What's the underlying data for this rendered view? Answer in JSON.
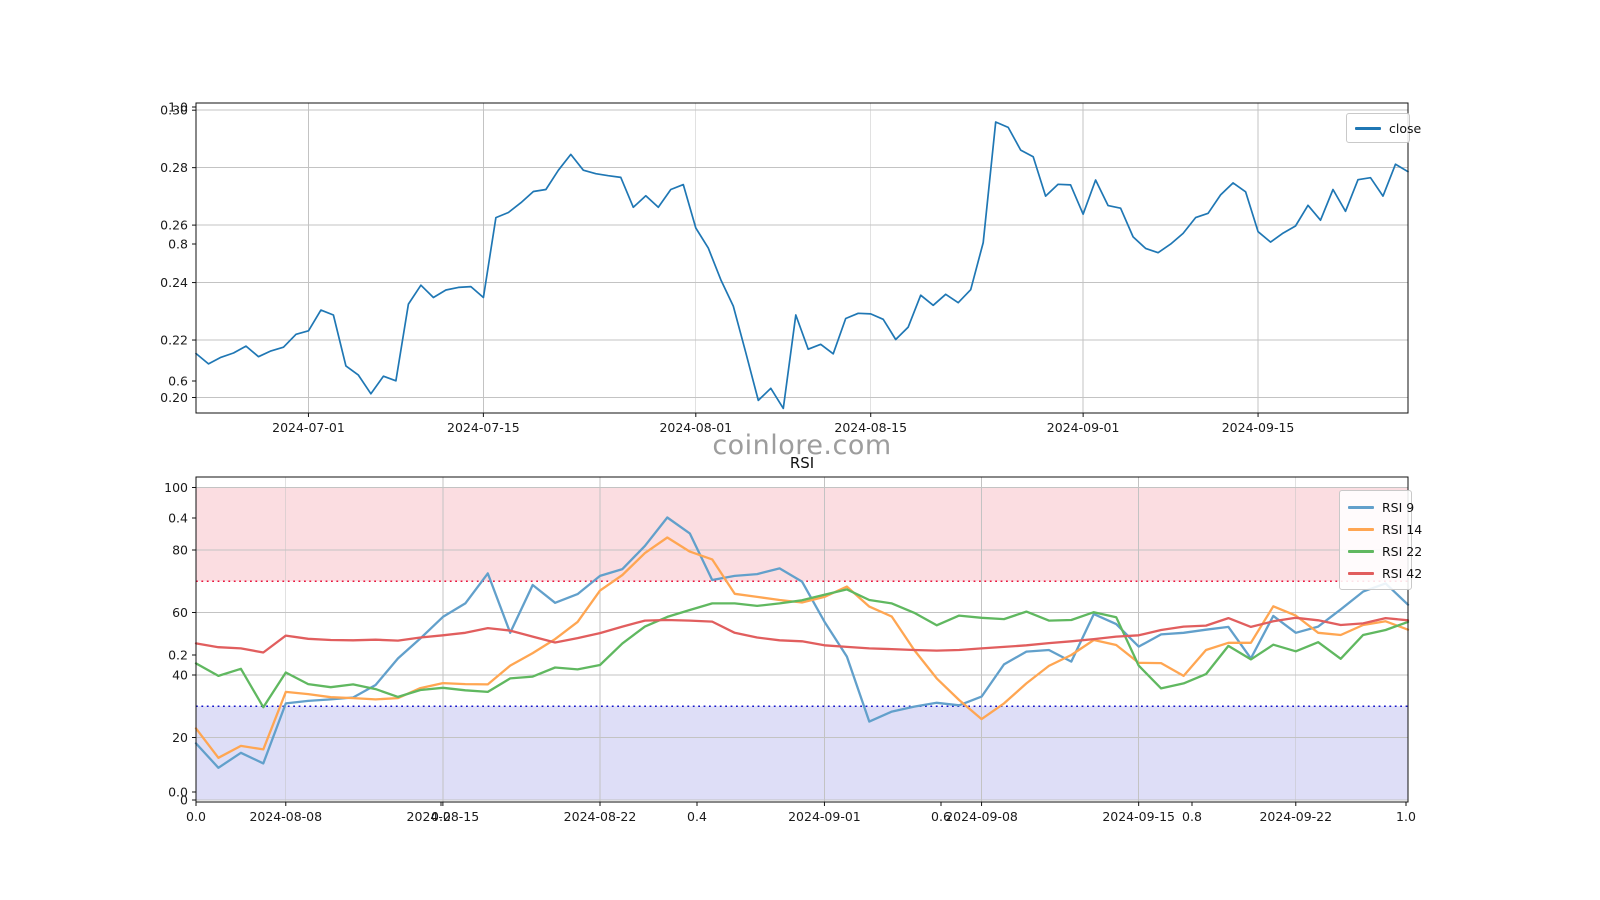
{
  "watermark": "coinlore.com",
  "overlay_axis": {
    "xtick_labels": [
      "0.0",
      "0.2",
      "0.4",
      "0.6",
      "0.8",
      "1.0"
    ],
    "ytick_labels": [
      "1.0",
      "0.8",
      "0.6",
      "0.4",
      "0.2",
      "0.0"
    ]
  },
  "chart_data": [
    {
      "type": "line",
      "title": "",
      "legend_position": "upper right",
      "grid": true,
      "ylim": [
        0.1946,
        0.3025
      ],
      "yticks": [
        {
          "v": 0.3,
          "label": "0.30"
        },
        {
          "v": 0.28,
          "label": "0.28"
        },
        {
          "v": 0.26,
          "label": "0.26"
        },
        {
          "v": 0.24,
          "label": "0.24"
        },
        {
          "v": 0.22,
          "label": "0.22"
        },
        {
          "v": 0.2,
          "label": "0.20"
        }
      ],
      "xticks": [
        {
          "i": 9,
          "label": "2024-07-01"
        },
        {
          "i": 23,
          "label": "2024-07-15"
        },
        {
          "i": 40,
          "label": "2024-08-01"
        },
        {
          "i": 54,
          "label": "2024-08-15"
        },
        {
          "i": 71,
          "label": "2024-09-01"
        },
        {
          "i": 85,
          "label": "2024-09-15"
        }
      ],
      "x": [
        "2024-06-22",
        "2024-06-23",
        "2024-06-24",
        "2024-06-25",
        "2024-06-26",
        "2024-06-27",
        "2024-06-28",
        "2024-06-29",
        "2024-06-30",
        "2024-07-01",
        "2024-07-02",
        "2024-07-03",
        "2024-07-04",
        "2024-07-05",
        "2024-07-06",
        "2024-07-07",
        "2024-07-08",
        "2024-07-09",
        "2024-07-10",
        "2024-07-11",
        "2024-07-12",
        "2024-07-13",
        "2024-07-14",
        "2024-07-15",
        "2024-07-16",
        "2024-07-17",
        "2024-07-18",
        "2024-07-19",
        "2024-07-20",
        "2024-07-21",
        "2024-07-22",
        "2024-07-23",
        "2024-07-24",
        "2024-07-25",
        "2024-07-26",
        "2024-07-27",
        "2024-07-28",
        "2024-07-29",
        "2024-07-30",
        "2024-07-31",
        "2024-08-01",
        "2024-08-02",
        "2024-08-03",
        "2024-08-04",
        "2024-08-05",
        "2024-08-06",
        "2024-08-07",
        "2024-08-08",
        "2024-08-09",
        "2024-08-10",
        "2024-08-11",
        "2024-08-12",
        "2024-08-13",
        "2024-08-14",
        "2024-08-15",
        "2024-08-16",
        "2024-08-17",
        "2024-08-18",
        "2024-08-19",
        "2024-08-20",
        "2024-08-21",
        "2024-08-22",
        "2024-08-23",
        "2024-08-24",
        "2024-08-25",
        "2024-08-26",
        "2024-08-27",
        "2024-08-28",
        "2024-08-29",
        "2024-08-30",
        "2024-08-31",
        "2024-09-01",
        "2024-09-02",
        "2024-09-03",
        "2024-09-04",
        "2024-09-05",
        "2024-09-06",
        "2024-09-07",
        "2024-09-08",
        "2024-09-09",
        "2024-09-10",
        "2024-09-11",
        "2024-09-12",
        "2024-09-13",
        "2024-09-14",
        "2024-09-15",
        "2024-09-16",
        "2024-09-17",
        "2024-09-18",
        "2024-09-19",
        "2024-09-20",
        "2024-09-21",
        "2024-09-22",
        "2024-09-23",
        "2024-09-24",
        "2024-09-25",
        "2024-09-26",
        "2024-09-27"
      ],
      "series": [
        {
          "name": "close",
          "color": "#1f77b4",
          "width": 1.7,
          "values": [
            0.2153,
            0.2117,
            0.214,
            0.2155,
            0.2179,
            0.2142,
            0.2162,
            0.2175,
            0.222,
            0.2232,
            0.2304,
            0.2287,
            0.211,
            0.2078,
            0.2013,
            0.2074,
            0.2058,
            0.2325,
            0.2391,
            0.2348,
            0.2374,
            0.2383,
            0.2386,
            0.2348,
            0.2626,
            0.2644,
            0.2678,
            0.2717,
            0.2724,
            0.2791,
            0.2846,
            0.2791,
            0.2779,
            0.2772,
            0.2766,
            0.2662,
            0.2702,
            0.2662,
            0.2724,
            0.2741,
            0.259,
            0.252,
            0.241,
            0.2318,
            0.2156,
            0.199,
            0.2032,
            0.1962,
            0.2287,
            0.2168,
            0.2185,
            0.2152,
            0.2275,
            0.2293,
            0.2291,
            0.2272,
            0.2202,
            0.2245,
            0.2356,
            0.2321,
            0.2359,
            0.233,
            0.2375,
            0.2539,
            0.2959,
            0.294,
            0.2861,
            0.2838,
            0.2701,
            0.2742,
            0.274,
            0.2638,
            0.2757,
            0.2668,
            0.2659,
            0.2559,
            0.2519,
            0.2504,
            0.2534,
            0.2571,
            0.2626,
            0.2641,
            0.2705,
            0.2747,
            0.2716,
            0.2577,
            0.2541,
            0.2572,
            0.2597,
            0.2669,
            0.2617,
            0.2724,
            0.2648,
            0.2758,
            0.2765,
            0.2701,
            0.2812,
            0.2786
          ]
        }
      ]
    },
    {
      "type": "line",
      "title": "RSI",
      "legend_position": "upper right",
      "grid": true,
      "ylim": [
        -0.64,
        103.36
      ],
      "bands": [
        {
          "from": 70,
          "to": 100,
          "color": "#fbdde1"
        },
        {
          "from": 0,
          "to": 30,
          "color": "#dedef7"
        }
      ],
      "thresholds": [
        {
          "v": 70,
          "color": "#e8143c"
        },
        {
          "v": 30,
          "color": "#1414c8"
        }
      ],
      "yticks": [
        {
          "v": 100,
          "label": "100"
        },
        {
          "v": 80,
          "label": "80"
        },
        {
          "v": 60,
          "label": "60"
        },
        {
          "v": 40,
          "label": "40"
        },
        {
          "v": 20,
          "label": "20"
        },
        {
          "v": 0,
          "label": "0"
        }
      ],
      "xticks": [
        {
          "i": 4,
          "label": "2024-08-08"
        },
        {
          "i": 11,
          "label": "2024-08-15"
        },
        {
          "i": 18,
          "label": "2024-08-22"
        },
        {
          "i": 28,
          "label": "2024-09-01"
        },
        {
          "i": 35,
          "label": "2024-09-08"
        },
        {
          "i": 42,
          "label": "2024-09-15"
        },
        {
          "i": 49,
          "label": "2024-09-22"
        }
      ],
      "x": [
        "2024-08-04",
        "2024-08-05",
        "2024-08-06",
        "2024-08-07",
        "2024-08-08",
        "2024-08-09",
        "2024-08-10",
        "2024-08-11",
        "2024-08-12",
        "2024-08-13",
        "2024-08-14",
        "2024-08-15",
        "2024-08-16",
        "2024-08-17",
        "2024-08-18",
        "2024-08-19",
        "2024-08-20",
        "2024-08-21",
        "2024-08-22",
        "2024-08-23",
        "2024-08-24",
        "2024-08-25",
        "2024-08-26",
        "2024-08-27",
        "2024-08-28",
        "2024-08-29",
        "2024-08-30",
        "2024-08-31",
        "2024-09-01",
        "2024-09-02",
        "2024-09-03",
        "2024-09-04",
        "2024-09-05",
        "2024-09-06",
        "2024-09-07",
        "2024-09-08",
        "2024-09-09",
        "2024-09-10",
        "2024-09-11",
        "2024-09-12",
        "2024-09-13",
        "2024-09-14",
        "2024-09-15",
        "2024-09-16",
        "2024-09-17",
        "2024-09-18",
        "2024-09-19",
        "2024-09-20",
        "2024-09-21",
        "2024-09-22",
        "2024-09-23",
        "2024-09-24",
        "2024-09-25",
        "2024-09-26",
        "2024-09-27"
      ],
      "series": [
        {
          "name": "RSI 9",
          "color": "#62a0cb",
          "width": 2.3,
          "values": [
            18.1,
            10.3,
            15.1,
            11.7,
            30.9,
            31.7,
            32.2,
            32.8,
            36.8,
            45.3,
            51.7,
            58.6,
            62.9,
            72.5,
            53.5,
            68.8,
            63.1,
            65.9,
            71.7,
            73.9,
            81.3,
            90.4,
            85.3,
            70.4,
            71.7,
            72.3,
            74.1,
            69.9,
            57.1,
            45.9,
            25.1,
            28.3,
            29.9,
            31.1,
            30.3,
            33.1,
            43.4,
            47.5,
            48.0,
            44.3,
            59.5,
            56.3,
            49.1,
            53.0,
            53.5,
            54.5,
            55.4,
            45.3,
            58.9,
            53.5,
            55.5,
            61.0,
            66.7,
            69.3,
            62.5
          ]
        },
        {
          "name": "RSI 14",
          "color": "#ffa652",
          "width": 2.3,
          "values": [
            22.9,
            13.5,
            17.3,
            16.2,
            34.6,
            33.9,
            32.9,
            32.6,
            32.2,
            32.6,
            35.8,
            37.4,
            37.1,
            37.0,
            43.0,
            47.0,
            51.5,
            57.0,
            67.0,
            72.0,
            79.0,
            84.0,
            79.5,
            77.0,
            66.0,
            65.0,
            64.0,
            63.2,
            65.0,
            68.3,
            61.9,
            58.7,
            48.0,
            38.9,
            32.0,
            25.9,
            30.9,
            37.3,
            42.9,
            46.4,
            51.2,
            49.6,
            43.9,
            43.8,
            39.7,
            48.0,
            50.3,
            50.3,
            62.0,
            59.0,
            53.5,
            52.8,
            56.0,
            57.2,
            54.5
          ]
        },
        {
          "name": "RSI 22",
          "color": "#60b860",
          "width": 2.3,
          "values": [
            43.7,
            39.7,
            42.0,
            29.7,
            40.8,
            37.1,
            36.1,
            37.0,
            35.5,
            33.0,
            35.2,
            35.9,
            35.1,
            34.6,
            38.9,
            39.5,
            42.4,
            41.8,
            43.2,
            50.1,
            55.5,
            58.6,
            60.8,
            62.9,
            62.9,
            62.1,
            62.9,
            63.9,
            65.7,
            67.4,
            64.0,
            62.9,
            59.9,
            55.9,
            59.0,
            58.3,
            57.9,
            60.3,
            57.4,
            57.6,
            60.1,
            58.5,
            43.0,
            35.7,
            37.3,
            40.3,
            49.3,
            45.0,
            49.7,
            47.6,
            50.5,
            45.2,
            52.8,
            54.4,
            57.0
          ]
        },
        {
          "name": "RSI 42",
          "color": "#e15e5e",
          "width": 2.3,
          "values": [
            50.1,
            48.9,
            48.5,
            47.2,
            52.6,
            51.6,
            51.2,
            51.1,
            51.3,
            51.0,
            52.0,
            52.7,
            53.5,
            55.0,
            54.2,
            52.3,
            50.4,
            51.8,
            53.4,
            55.5,
            57.4,
            57.6,
            57.4,
            57.1,
            53.5,
            52.0,
            51.1,
            50.8,
            49.5,
            49.0,
            48.5,
            48.3,
            48.0,
            47.8,
            48.0,
            48.5,
            49.0,
            49.5,
            50.2,
            50.8,
            51.5,
            52.3,
            52.7,
            54.4,
            55.5,
            55.8,
            58.2,
            55.4,
            57.2,
            58.3,
            57.5,
            56.0,
            56.5,
            58.2,
            57.5
          ]
        }
      ]
    }
  ]
}
